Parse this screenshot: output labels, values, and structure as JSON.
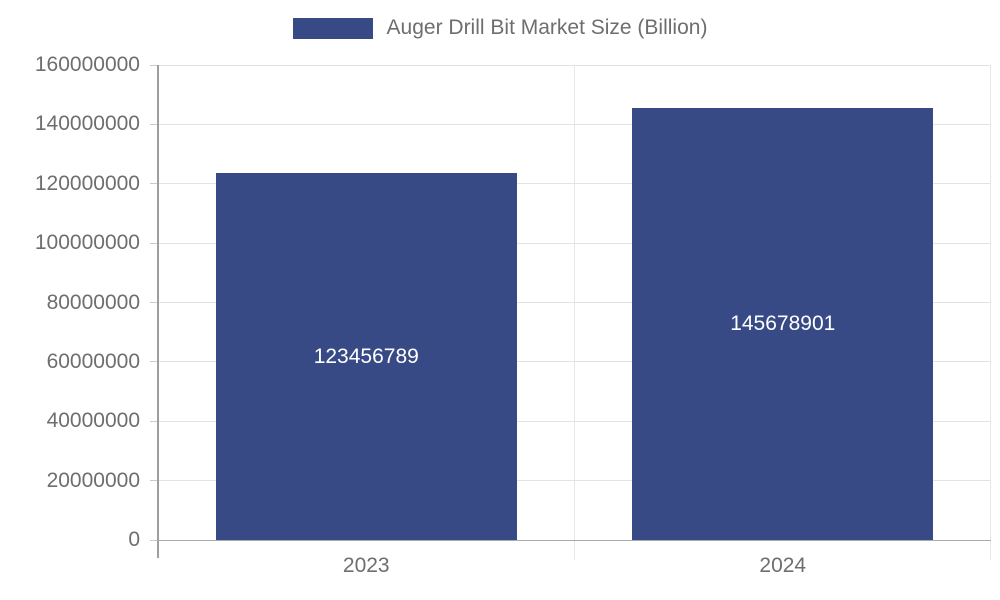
{
  "chart_data": {
    "type": "bar",
    "title": "Auger Drill Bit Market Size (Billion)",
    "categories": [
      "2023",
      "2024"
    ],
    "series": [
      {
        "name": "Auger Drill Bit Market Size (Billion)",
        "values": [
          123456789,
          145678901
        ]
      }
    ],
    "value_labels": [
      "123456789",
      "145678901"
    ],
    "xlabel": "",
    "ylabel": "",
    "ylim": [
      0,
      160000000
    ],
    "yticks": [
      {
        "label": "0",
        "value": 0
      },
      {
        "label": "20000000",
        "value": 20000000
      },
      {
        "label": "40000000",
        "value": 40000000
      },
      {
        "label": "60000000",
        "value": 60000000
      },
      {
        "label": "80000000",
        "value": 80000000
      },
      {
        "label": "100000000",
        "value": 100000000
      },
      {
        "label": "120000000",
        "value": 120000000
      },
      {
        "label": "140000000",
        "value": 140000000
      },
      {
        "label": "160000000",
        "value": 160000000
      }
    ],
    "grid": true,
    "legend_position": "top",
    "colors": {
      "bar": "#374a85",
      "grid": "#e3e3e3",
      "axis": "#9e9e9e",
      "tick": "#cccccc",
      "separator": "#e6e6e6",
      "axis_text": "#6e6e6e",
      "value_label_text": "#ffffff"
    }
  }
}
